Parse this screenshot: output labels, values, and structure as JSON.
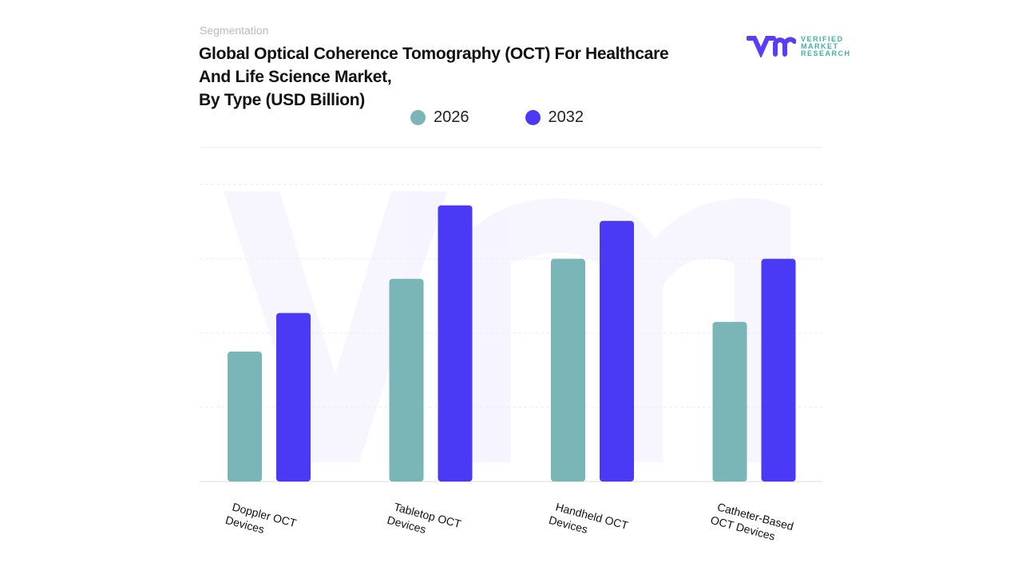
{
  "header": {
    "segment_label": "Segmentation",
    "title_lines": [
      "Global Optical Coherence Tomography (OCT) For Healthcare",
      "And Life Science Market,",
      "By Type (USD Billion)"
    ]
  },
  "logo": {
    "lines": [
      "VERIFIED",
      "MARKET",
      "RESEARCH"
    ],
    "brand_mark": "vmr"
  },
  "colors": {
    "2026": "#7ab5b8",
    "2032": "#4a3af5",
    "logo_purple": "#5b3df5",
    "logo_teal": "#3fb0a8"
  },
  "chart_data": {
    "type": "bar",
    "title": "Global Optical Coherence Tomography (OCT) For Healthcare And Life Science Market, By Type (USD Billion)",
    "categories": [
      "Doppler OCT Devices",
      "Tabletop OCT Devices",
      "Handheld OCT Devices",
      "Catheter-Based OCT Devices"
    ],
    "category_lines": [
      [
        "Doppler OCT",
        "Devices"
      ],
      [
        "Tabletop OCT",
        "Devices"
      ],
      [
        "Handheld OCT",
        "Devices"
      ],
      [
        "Catheter-Based",
        "OCT Devices"
      ]
    ],
    "series": [
      {
        "name": "2026",
        "values": [
          1.75,
          2.73,
          3.0,
          2.15
        ]
      },
      {
        "name": "2032",
        "values": [
          2.27,
          3.72,
          3.51,
          3.0
        ]
      }
    ],
    "ylim": [
      0,
      4.5
    ],
    "grid": true,
    "legend": "top-center",
    "y_axis_labels": false
  }
}
